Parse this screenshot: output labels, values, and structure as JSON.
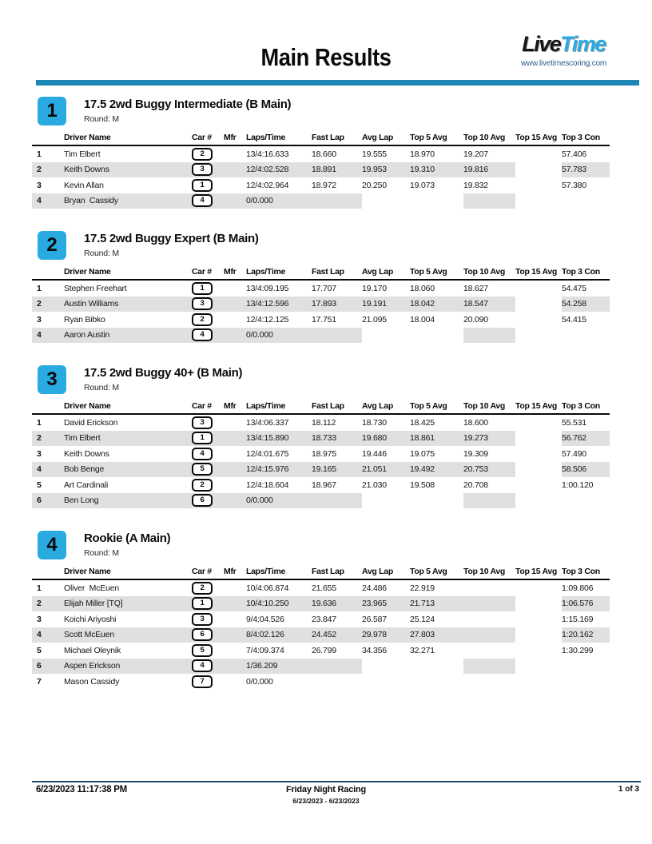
{
  "header": {
    "title": "Main Results",
    "logo_live": "Live",
    "logo_time": "Time",
    "logo_url": "www.livetimescoring.com"
  },
  "columns": [
    "Driver Name",
    "Car #",
    "Mfr",
    "Laps/Time",
    "Fast Lap",
    "Avg Lap",
    "Top 5 Avg",
    "Top 10 Avg",
    "Top 15 Avg",
    "Top 3 Con"
  ],
  "column_keys": [
    "pos",
    "driver",
    "car",
    "mfr",
    "laps",
    "fast",
    "avg",
    "top5",
    "top10",
    "top15",
    "top3"
  ],
  "white_when_empty_cols": [
    "avg",
    "top5",
    "top15",
    "top3"
  ],
  "sections": [
    {
      "number": "1",
      "title": "17.5 2wd Buggy Intermediate (B Main)",
      "round": "Round: M",
      "rows": [
        [
          "1",
          "Tim Elbert",
          "2",
          "",
          "13/4:16.633",
          "18.660",
          "19.555",
          "18.970",
          "19.207",
          "",
          "57.406"
        ],
        [
          "2",
          "Keith Downs",
          "3",
          "",
          "12/4:02.528",
          "18.891",
          "19.953",
          "19.310",
          "19.816",
          "",
          "57.783"
        ],
        [
          "3",
          "Kevin Allan",
          "1",
          "",
          "12/4:02.964",
          "18.972",
          "20.250",
          "19.073",
          "19.832",
          "",
          "57.380"
        ],
        [
          "4",
          "Bryan  Cassidy",
          "4",
          "",
          "0/0.000",
          "",
          "",
          "",
          "",
          "",
          ""
        ]
      ]
    },
    {
      "number": "2",
      "title": "17.5 2wd Buggy Expert (B Main)",
      "round": "Round: M",
      "rows": [
        [
          "1",
          "Stephen Freehart",
          "1",
          "",
          "13/4:09.195",
          "17.707",
          "19.170",
          "18.060",
          "18.627",
          "",
          "54.475"
        ],
        [
          "2",
          "Austin Williams",
          "3",
          "",
          "13/4:12.596",
          "17.893",
          "19.191",
          "18.042",
          "18.547",
          "",
          "54.258"
        ],
        [
          "3",
          "Ryan Bibko",
          "2",
          "",
          "12/4:12.125",
          "17.751",
          "21.095",
          "18.004",
          "20.090",
          "",
          "54.415"
        ],
        [
          "4",
          "Aaron Austin",
          "4",
          "",
          "0/0.000",
          "",
          "",
          "",
          "",
          "",
          ""
        ]
      ]
    },
    {
      "number": "3",
      "title": "17.5 2wd Buggy 40+ (B Main)",
      "round": "Round: M",
      "rows": [
        [
          "1",
          "David Erickson",
          "3",
          "",
          "13/4:06.337",
          "18.112",
          "18.730",
          "18.425",
          "18.600",
          "",
          "55.531"
        ],
        [
          "2",
          "Tim Elbert",
          "1",
          "",
          "13/4:15.890",
          "18.733",
          "19.680",
          "18.861",
          "19.273",
          "",
          "56.762"
        ],
        [
          "3",
          "Keith Downs",
          "4",
          "",
          "12/4:01.675",
          "18.975",
          "19.446",
          "19.075",
          "19.309",
          "",
          "57.490"
        ],
        [
          "4",
          "Bob Benge",
          "5",
          "",
          "12/4:15.976",
          "19.165",
          "21.051",
          "19.492",
          "20.753",
          "",
          "58.506"
        ],
        [
          "5",
          "Art Cardinali",
          "2",
          "",
          "12/4:18.604",
          "18.967",
          "21.030",
          "19.508",
          "20.708",
          "",
          "1:00.120"
        ],
        [
          "6",
          "Ben Long",
          "6",
          "",
          "0/0.000",
          "",
          "",
          "",
          "",
          "",
          ""
        ]
      ]
    },
    {
      "number": "4",
      "title": "Rookie (A Main)",
      "round": "Round: M",
      "rows": [
        [
          "1",
          "Oliver  McEuen",
          "2",
          "",
          "10/4:06.874",
          "21.655",
          "24.486",
          "22.919",
          "",
          "",
          "1:09.806"
        ],
        [
          "2",
          "Elijah Miller [TQ]",
          "1",
          "",
          "10/4:10.250",
          "19.636",
          "23.965",
          "21.713",
          "",
          "",
          "1:06.576"
        ],
        [
          "3",
          "Koichi Ariyoshi",
          "3",
          "",
          "9/4:04.526",
          "23.847",
          "26.587",
          "25.124",
          "",
          "",
          "1:15.169"
        ],
        [
          "4",
          "Scott McEuen",
          "6",
          "",
          "8/4:02.126",
          "24.452",
          "29.978",
          "27.803",
          "",
          "",
          "1:20.162"
        ],
        [
          "5",
          "Michael Oleynik",
          "5",
          "",
          "7/4:09.374",
          "26.799",
          "34.356",
          "32.271",
          "",
          "",
          "1:30.299"
        ],
        [
          "6",
          "Aspen Erickson",
          "4",
          "",
          "1/36.209",
          "",
          "",
          "",
          "",
          "",
          ""
        ],
        [
          "7",
          "Mason Cassidy",
          "7",
          "",
          "0/0.000",
          "",
          "",
          "",
          "",
          "",
          ""
        ]
      ]
    }
  ],
  "footer": {
    "timestamp": "6/23/2023 11:17:38 PM",
    "event": "Friday Night Racing",
    "dates": "6/23/2023 - 6/23/2023",
    "page": "1 of 3"
  },
  "colors": {
    "accent_cyan": "#29abe2",
    "header_bar": "#1e87b6",
    "footer_line": "#24496e",
    "row_gray": "#e0e0e0"
  }
}
